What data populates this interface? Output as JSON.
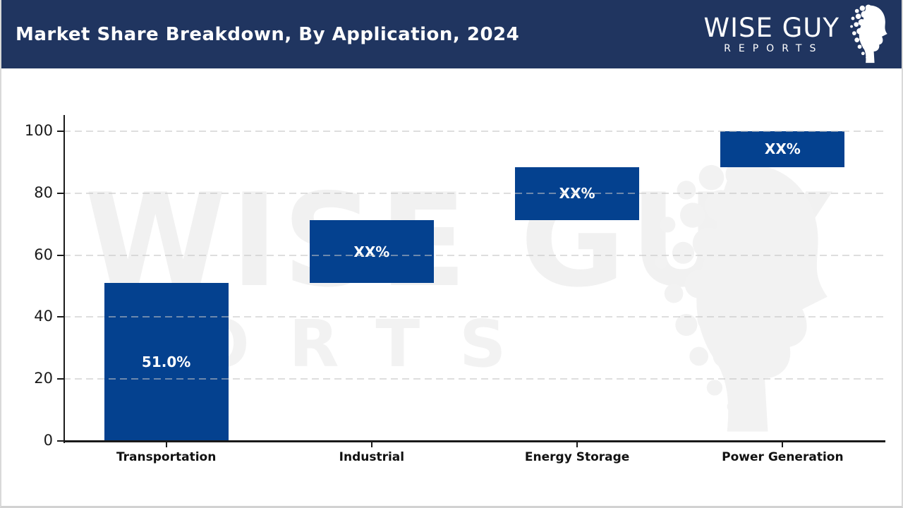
{
  "header": {
    "title": "Market Share Breakdown, By Application, 2024",
    "logo": {
      "line1": "WISE GUY",
      "line2": "REPORTS"
    }
  },
  "watermark": {
    "line1": "WISE GUY",
    "line2": "PORTS"
  },
  "chart_data": {
    "type": "bar",
    "subtype": "waterfall",
    "title": "Market Share Breakdown, By Application, 2024",
    "categories": [
      "Transportation",
      "Industrial",
      "Energy Storage",
      "Power Generation"
    ],
    "segments": [
      {
        "category": "Transportation",
        "start": 0.0,
        "end": 51.0,
        "value": 51.0,
        "label": "51.0%"
      },
      {
        "category": "Industrial",
        "start": 51.0,
        "end": 71.3,
        "value": 20.3,
        "label": "XX%"
      },
      {
        "category": "Energy Storage",
        "start": 71.3,
        "end": 88.4,
        "value": 17.1,
        "label": "XX%"
      },
      {
        "category": "Power Generation",
        "start": 88.4,
        "end": 100.0,
        "value": 11.6,
        "label": "XX%"
      }
    ],
    "yticks": [
      0,
      20,
      40,
      60,
      80,
      100
    ],
    "ylim": [
      0,
      105
    ],
    "xlabel": "",
    "ylabel": "",
    "grid": "horizontal-dashed-over-bars",
    "legend": "none",
    "bar_color": "#04418f",
    "bar_label_color": "#ffffff",
    "axis_color": "#1a1a1a",
    "header_color": "#203560",
    "watermark_color": "#f1f1f1"
  }
}
